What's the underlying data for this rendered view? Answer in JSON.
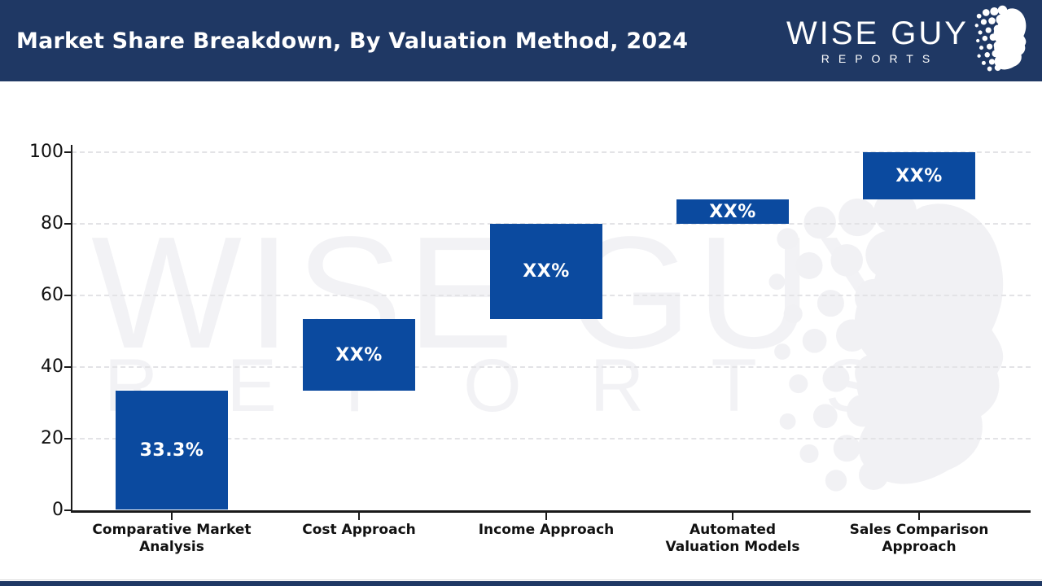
{
  "header": {
    "title": "Market Share Breakdown, By Valuation Method, 2024",
    "bg_color": "#1f3864",
    "logo": {
      "line1": "WISE GUY",
      "line2": "REPORTS"
    }
  },
  "watermark": {
    "line1": "WISE GUY",
    "line2": "REPORTS"
  },
  "chart_data": {
    "type": "bar",
    "subtype": "waterfall",
    "title": "Market Share Breakdown, By Valuation Method, 2024",
    "categories": [
      "Comparative Market Analysis",
      "Cost Approach",
      "Income Approach",
      "Automated Valuation Models",
      "Sales Comparison Approach"
    ],
    "category_lines": [
      [
        "Comparative Market",
        "Analysis"
      ],
      [
        "Cost Approach"
      ],
      [
        "Income Approach"
      ],
      [
        "Automated",
        "Valuation Models"
      ],
      [
        "Sales Comparison",
        "Approach"
      ]
    ],
    "series": [
      {
        "name": "Market Share",
        "segments": [
          {
            "start": 0,
            "end": 33.3,
            "label": "33.3%"
          },
          {
            "start": 33.3,
            "end": 53.3,
            "label": "XX%"
          },
          {
            "start": 53.3,
            "end": 80.0,
            "label": "XX%"
          },
          {
            "start": 80.0,
            "end": 86.7,
            "label": "XX%"
          },
          {
            "start": 86.7,
            "end": 100.0,
            "label": "XX%"
          }
        ]
      }
    ],
    "xlabel": "",
    "ylabel": "",
    "yticks": [
      0,
      20,
      40,
      60,
      80,
      100
    ],
    "ylim": [
      0,
      105
    ],
    "grid": "horizontal-dashed",
    "legend": "none",
    "bar_color": "#0b4a9f",
    "bar_label_color": "#ffffff",
    "axis_color": "#1a1a1a",
    "grid_color": "#e3e3e6"
  },
  "colors": {
    "header_bg": "#1f3864",
    "footer_bg": "#1f3864",
    "watermark": "#f2f2f5",
    "bar": "#0b4a9f"
  }
}
